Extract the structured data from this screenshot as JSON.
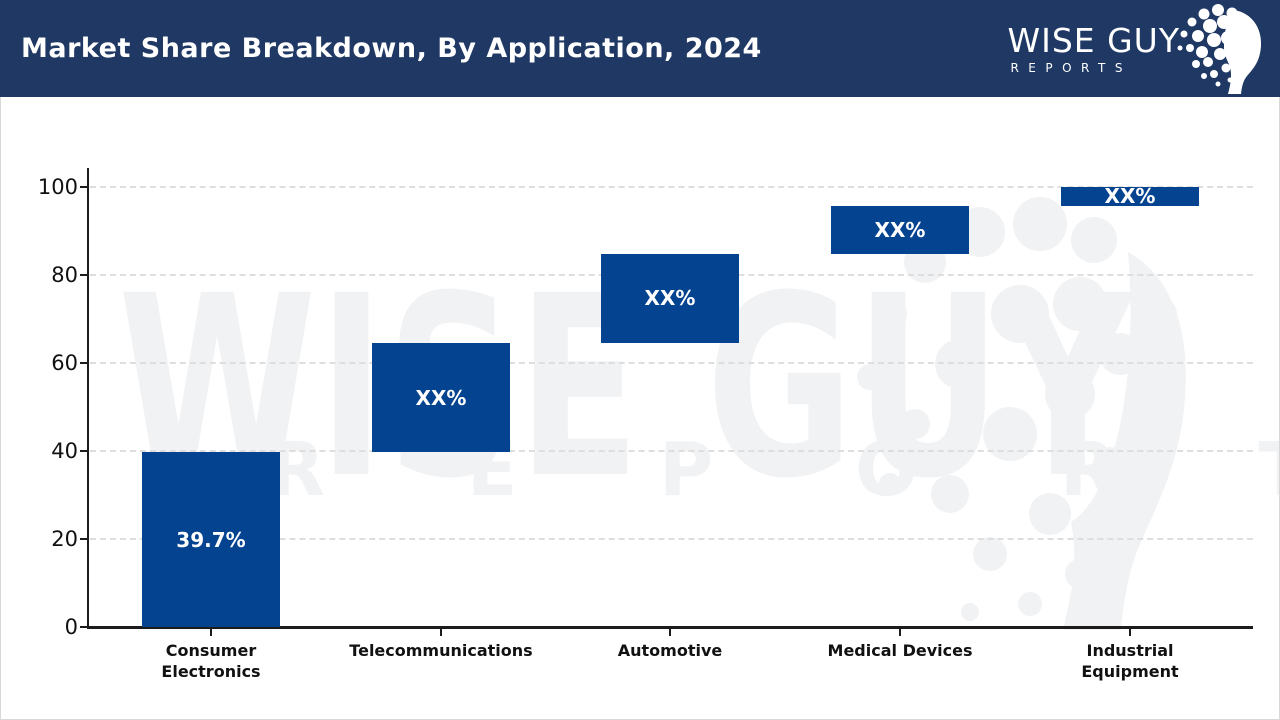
{
  "header": {
    "title": "Market Share Breakdown, By Application, 2024",
    "bg_color": "#1f3864",
    "logo": {
      "wordmark": "WISE GUY",
      "subtitle": "REPORTS"
    }
  },
  "watermark": {
    "line1": "WISE GUY",
    "line2": "R E P O R T S"
  },
  "chart_data": {
    "type": "bar",
    "subtype": "waterfall",
    "title": "Market Share Breakdown, By Application, 2024",
    "categories": [
      "Consumer\nElectronics",
      "Telecommunications",
      "Automotive",
      "Medical Devices",
      "Industrial\nEquipment"
    ],
    "bars": [
      {
        "category": "Consumer Electronics",
        "label": "39.7%",
        "start": 0,
        "end": 39.7
      },
      {
        "category": "Telecommunications",
        "label": "XX%",
        "start": 39.7,
        "end": 64.6
      },
      {
        "category": "Automotive",
        "label": "XX%",
        "start": 64.6,
        "end": 84.8
      },
      {
        "category": "Medical Devices",
        "label": "XX%",
        "start": 84.8,
        "end": 95.7
      },
      {
        "category": "Industrial Equipment",
        "label": "XX%",
        "start": 95.7,
        "end": 100
      }
    ],
    "yticks": [
      0,
      20,
      40,
      60,
      80,
      100
    ],
    "ylim": [
      0,
      104
    ],
    "xlabel": "",
    "ylabel": "",
    "grid": "horizontal-dashed",
    "legend": "none",
    "bar_color": "#04438f",
    "bar_label_color": "#ffffff",
    "axis_color": "#1c1c1c",
    "grid_color": "#dedede"
  }
}
